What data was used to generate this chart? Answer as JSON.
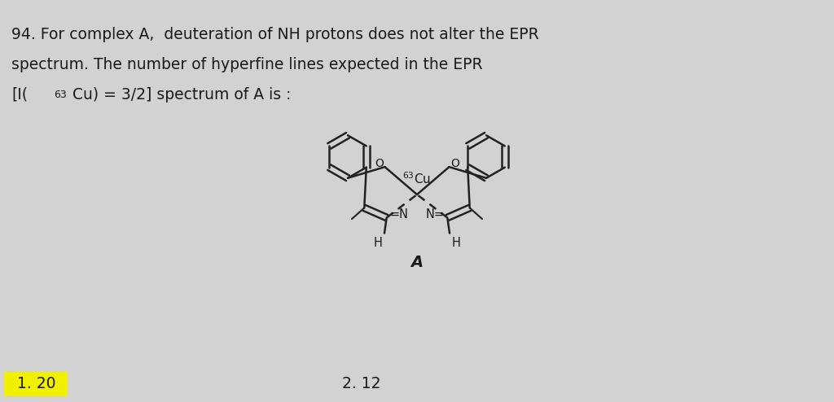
{
  "background_color": "#d2d2d2",
  "question_line1": "94. For complex A,  deuteration of NH protons does not alter the EPR",
  "question_line2": "spectrum. The number of hyperfine lines expected in the EPR",
  "question_line3_pre": "[I(",
  "question_line3_super": "63",
  "question_line3_post": "Cu) = 3/2] spectrum of A is :",
  "answer1_text": "1. 20",
  "answer1_bg": "#f0f000",
  "answer2_text": "2. 12",
  "mol_label": "A",
  "text_color": "#1a1a1a",
  "fig_width": 10.24,
  "fig_height": 4.94,
  "dpi": 100
}
